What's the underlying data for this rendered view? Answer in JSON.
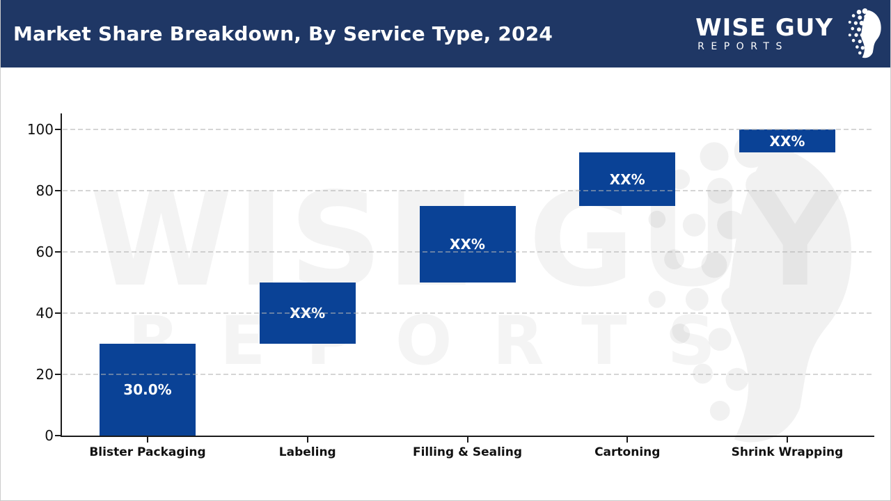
{
  "header": {
    "title": "Market Share Breakdown, By Service Type, 2024",
    "logo": {
      "brand": "WISE GUY",
      "sub": "REPORTS"
    }
  },
  "watermark": {
    "line1": "WISE GUY",
    "line2": "REPORTS"
  },
  "colors": {
    "header_bg": "#1f3765",
    "bar_blue": "#0a4296",
    "axis": "#1a1a1a",
    "gridline": "#d9d9d9",
    "page_border": "#cccccc",
    "bar_label": "#ffffff"
  },
  "chart_data": {
    "type": "bar",
    "subtype": "waterfall",
    "title": "Market Share Breakdown, By Service Type, 2024",
    "categories": [
      "Blister Packaging",
      "Labeling",
      "Filling & Sealing",
      "Cartoning",
      "Shrink Wrapping"
    ],
    "segments": [
      {
        "category": "Blister Packaging",
        "start": 0,
        "end": 30,
        "value": 30,
        "label": "30.0%"
      },
      {
        "category": "Labeling",
        "start": 30,
        "end": 50,
        "value": 20,
        "label": "XX%"
      },
      {
        "category": "Filling & Sealing",
        "start": 50,
        "end": 75,
        "value": 25,
        "label": "XX%"
      },
      {
        "category": "Cartoning",
        "start": 75,
        "end": 92.5,
        "value": 17.5,
        "label": "XX%"
      },
      {
        "category": "Shrink Wrapping",
        "start": 92.5,
        "end": 100,
        "value": 7.5,
        "label": "XX%"
      }
    ],
    "yticks": [
      0,
      20,
      40,
      60,
      80,
      100
    ],
    "ylim": [
      0,
      105
    ],
    "xlabel": "",
    "ylabel": "",
    "legend": null,
    "grid": {
      "axis": "y",
      "style": "dashed",
      "on": true
    }
  }
}
